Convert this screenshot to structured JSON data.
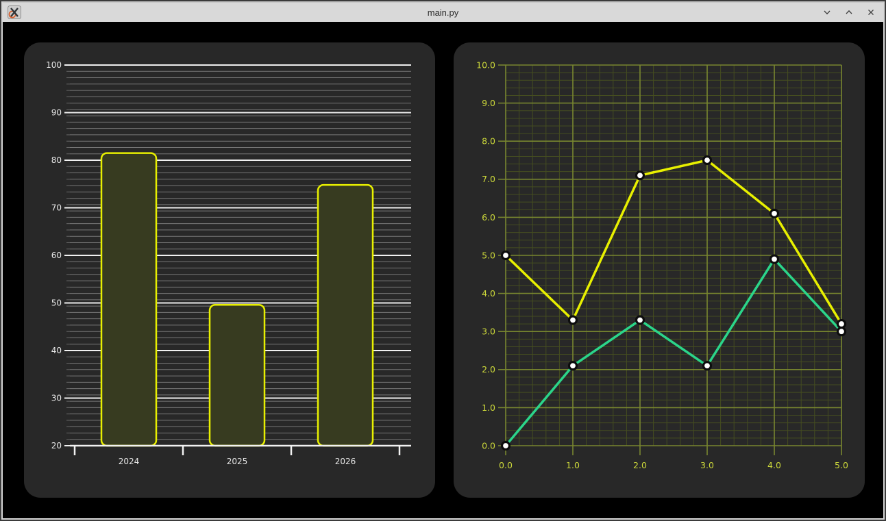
{
  "window": {
    "title": "main.py",
    "app_icon": "xorg-logo",
    "controls": {
      "minimize": "chevron-down",
      "maximize": "chevron-up",
      "close": "x"
    }
  },
  "colors": {
    "titlebar_bg": "#d9d9d9",
    "titlebar_text": "#2b2b2b",
    "frame_outer": "#3b3b3b",
    "frame_inner": "#d7d7d7",
    "content_bg": "#000000",
    "card_bg": "#282828",
    "bar_fill": "#373b20",
    "bar_edge": "#e8f000",
    "bar_axis": "#f2f2f2",
    "bar_label": "#e8e8e8",
    "bar_scanline": "rgba(255,255,255,0.38)",
    "bar_gridline": "rgba(255,255,255,0.92)",
    "line_yellow": "#e8f000",
    "line_teal": "#2bd58a",
    "line_grid_major": "#78862f",
    "line_grid_minor": "#454d20",
    "line_tick_label": "#ccd83a",
    "marker_fill": "#ffffff",
    "marker_edge": "#0d0d0d"
  },
  "chart_data": [
    {
      "type": "bar",
      "title": "",
      "categories": [
        "2024",
        "2025",
        "2026"
      ],
      "values": [
        81.5,
        49.6,
        74.8
      ],
      "ylim": [
        20,
        100
      ],
      "yticks": [
        20,
        30,
        40,
        50,
        60,
        70,
        80,
        90,
        100
      ],
      "ytick_labels": [
        "20",
        "30",
        "40",
        "50",
        "60",
        "70",
        "80",
        "90",
        "100"
      ],
      "xlabel": "",
      "ylabel": "",
      "grid": "dense-horizontal-scanlines-with-bright-major-lines",
      "legend": "none",
      "bar_style": "rounded-corners-dark-olive-fill-yellow-edge"
    },
    {
      "type": "line",
      "title": "",
      "x": [
        0,
        1,
        2,
        3,
        4,
        5
      ],
      "xticks": [
        0,
        1,
        2,
        3,
        4,
        5
      ],
      "xtick_labels": [
        "0.0",
        "1.0",
        "2.0",
        "3.0",
        "4.0",
        "5.0"
      ],
      "yticks": [
        0,
        1,
        2,
        3,
        4,
        5,
        6,
        7,
        8,
        9,
        10
      ],
      "ytick_labels": [
        "0.0",
        "1.0",
        "2.0",
        "3.0",
        "4.0",
        "5.0",
        "6.0",
        "7.0",
        "8.0",
        "9.0",
        "10.0"
      ],
      "xlim": [
        0,
        5
      ],
      "ylim": [
        0,
        10
      ],
      "series": [
        {
          "name": "series-yellow",
          "color": "#e8f000",
          "values": [
            5.0,
            3.3,
            7.1,
            7.5,
            6.1,
            3.2
          ]
        },
        {
          "name": "series-teal",
          "color": "#2bd58a",
          "values": [
            0.0,
            2.1,
            3.3,
            2.1,
            4.9,
            3.0
          ]
        }
      ],
      "grid": true,
      "minor_divisions_per_major": 5,
      "legend": "none",
      "marker": "circle-white-fill-black-edge"
    }
  ]
}
